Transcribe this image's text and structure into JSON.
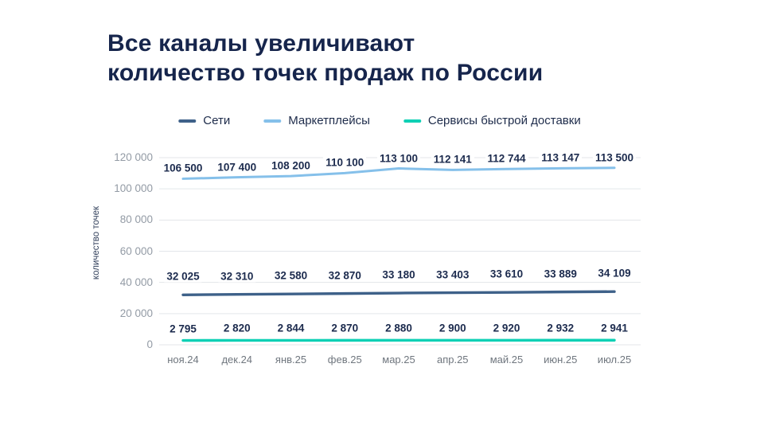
{
  "slide": {
    "title_line1": "Все каналы увеличивают",
    "title_line2": "количество точек продаж по России"
  },
  "legend": [
    {
      "label": "Сети",
      "color": "#3e6189"
    },
    {
      "label": "Маркетплейсы",
      "color": "#85c0ea"
    },
    {
      "label": "Сервисы быстрой доставки",
      "color": "#0fd0b5"
    }
  ],
  "colors": {
    "title": "#16254c",
    "data_label": "#1c2b4e",
    "axis_text": "#939ba5",
    "gridline": "#e3e6ea"
  },
  "chart_data": {
    "type": "line",
    "title": "",
    "xlabel": "",
    "ylabel": "количество точек",
    "categories": [
      "ноя.24",
      "дек.24",
      "янв.25",
      "фев.25",
      "мар.25",
      "апр.25",
      "май.25",
      "июн.25",
      "июл.25"
    ],
    "series": [
      {
        "name": "Маркетплейсы",
        "color": "#85c0ea",
        "values": [
          106500,
          107400,
          108200,
          110100,
          113100,
          112141,
          112744,
          113147,
          113500
        ]
      },
      {
        "name": "Сети",
        "color": "#3e6189",
        "values": [
          32025,
          32310,
          32580,
          32870,
          33180,
          33403,
          33610,
          33889,
          34109
        ]
      },
      {
        "name": "Сервисы быстрой доставки",
        "color": "#0fd0b5",
        "values": [
          2795,
          2820,
          2844,
          2870,
          2880,
          2900,
          2920,
          2932,
          2941
        ]
      }
    ],
    "y_ticks": [
      0,
      20000,
      40000,
      60000,
      80000,
      100000,
      120000
    ],
    "ylim": [
      0,
      120000
    ],
    "grid": "horizontal",
    "legend_position": "top",
    "data_labels": true
  }
}
